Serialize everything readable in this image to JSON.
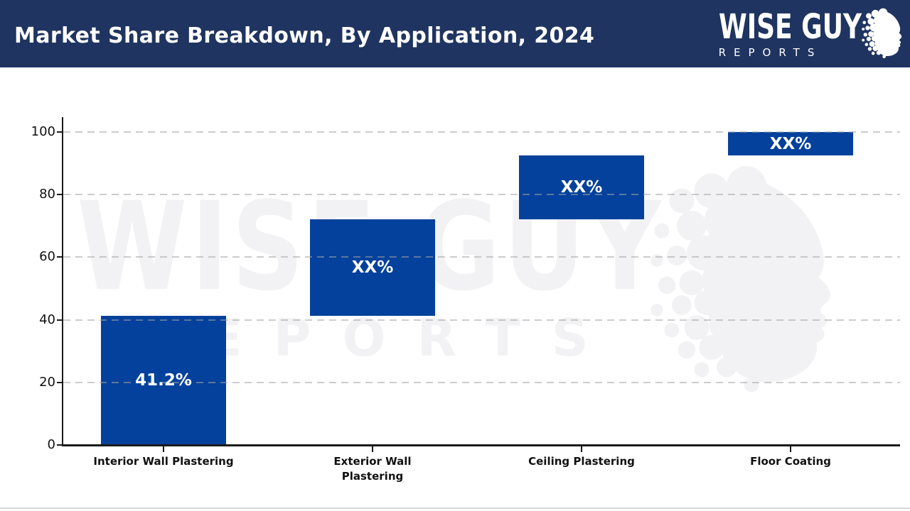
{
  "header": {
    "title": "Market Share Breakdown, By Application, 2024",
    "logo": {
      "wordmark": "WISE GUY",
      "subtext": "REPORTS"
    }
  },
  "watermark": {
    "line1": "WISE GUY",
    "line2": "REPORTS"
  },
  "colors": {
    "header_bg": "#1f3460",
    "bar": "#04419c",
    "bar_label_text": "#ffffff",
    "gridline": "#d4d4d4",
    "axis": "#1a1a1a",
    "watermark": "#f2f2f4"
  },
  "chart_data": {
    "type": "bar",
    "subtype": "waterfall",
    "title": "Market Share Breakdown, By Application, 2024",
    "categories": [
      "Interior Wall Plastering",
      "Exterior Wall Plastering",
      "Ceiling Plastering",
      "Floor Coating"
    ],
    "segments": [
      {
        "category": "Interior Wall Plastering",
        "start": 0,
        "end": 41.2,
        "label": "41.2%"
      },
      {
        "category": "Exterior Wall Plastering",
        "start": 41.2,
        "end": 72,
        "label": "XX%"
      },
      {
        "category": "Ceiling Plastering",
        "start": 72,
        "end": 92.5,
        "label": "XX%"
      },
      {
        "category": "Floor Coating",
        "start": 92.5,
        "end": 100,
        "label": "XX%"
      }
    ],
    "xlabel": "",
    "ylabel": "",
    "ylim": [
      0,
      100
    ],
    "yticks": [
      0,
      20,
      40,
      60,
      80,
      100
    ],
    "grid": "horizontal-dashed",
    "legend": "none"
  }
}
